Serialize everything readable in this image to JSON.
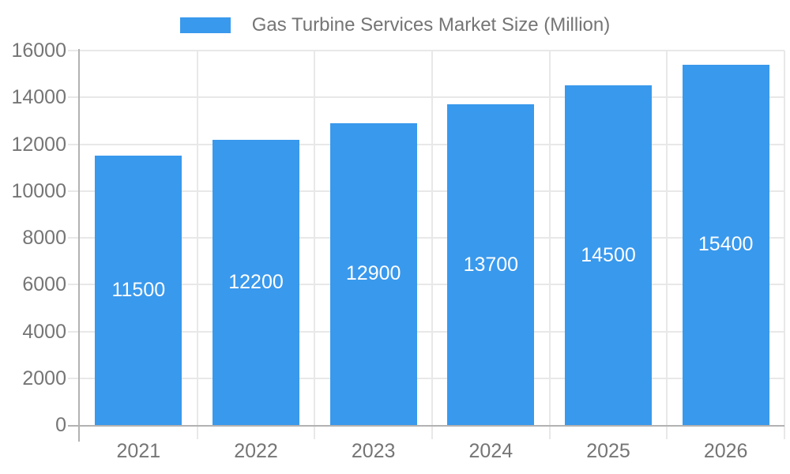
{
  "chart_data": {
    "type": "bar",
    "title": "Gas Turbine Services Market Size (Million)",
    "categories": [
      "2021",
      "2022",
      "2023",
      "2024",
      "2025",
      "2026"
    ],
    "values": [
      11500,
      12200,
      12900,
      13700,
      14500,
      15400
    ],
    "xlabel": "",
    "ylabel": "",
    "ylim": [
      0,
      16000
    ],
    "ytick_step": 2000,
    "yticks": [
      0,
      2000,
      4000,
      6000,
      8000,
      10000,
      12000,
      14000,
      16000
    ],
    "grid": true,
    "legend_position": "top-center",
    "value_labels": "inside-center",
    "colors": {
      "bar": "#3999ED",
      "bar_value_text": "#ffffff",
      "axis_line": "#b2b2b2",
      "grid_line": "#e8e8e8",
      "text": "#757575",
      "background": "#ffffff"
    }
  }
}
